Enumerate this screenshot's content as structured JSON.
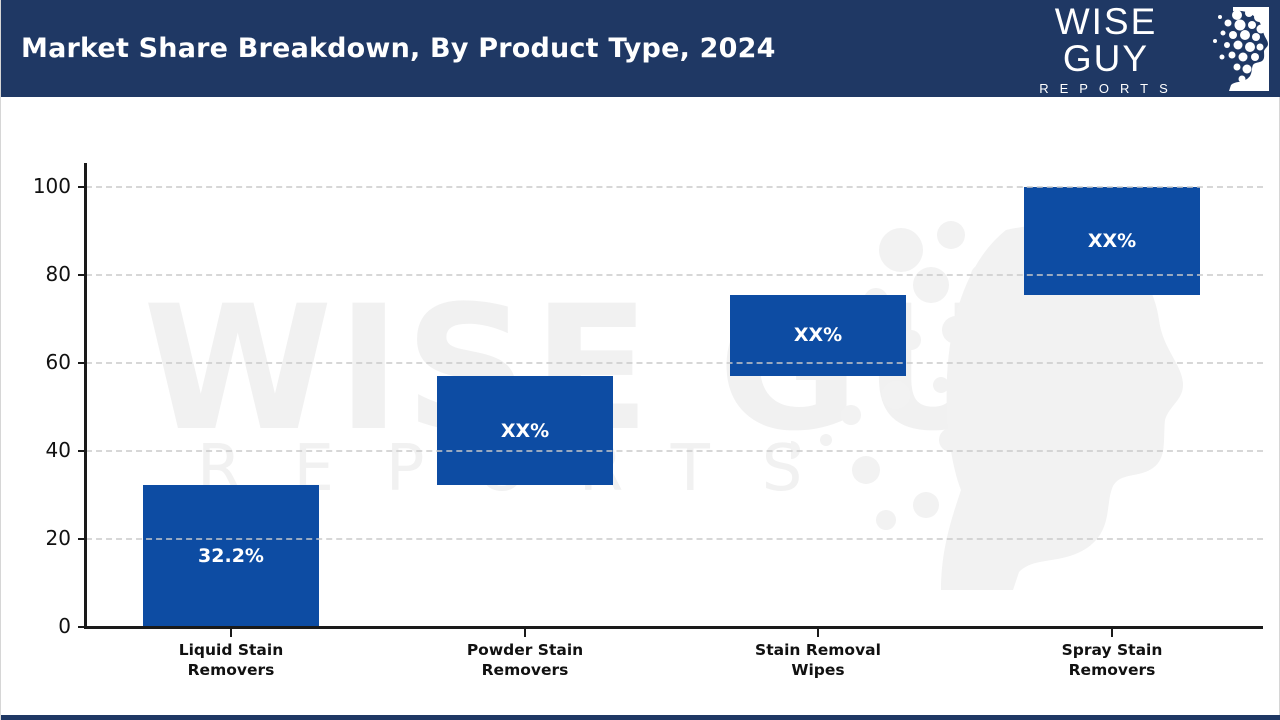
{
  "header": {
    "title": "Market Share Breakdown, By Product Type, 2024",
    "logo": {
      "line1": "WISE GUY",
      "line2": "REPORTS"
    }
  },
  "watermark": {
    "line1": "WISE GUY",
    "line2": "REPORTS"
  },
  "chart_data": {
    "type": "bar",
    "subtype": "waterfall",
    "title": "Market Share Breakdown, By Product Type, 2024",
    "categories": [
      "Liquid Stain\nRemovers",
      "Powder Stain\nRemovers",
      "Stain Removal\nWipes",
      "Spray Stain\nRemovers"
    ],
    "bars": [
      {
        "label": "32.2%",
        "start": 0,
        "end": 32.2
      },
      {
        "label": "XX%",
        "start": 32.2,
        "end": 57
      },
      {
        "label": "XX%",
        "start": 57,
        "end": 75.5
      },
      {
        "label": "XX%",
        "start": 75.5,
        "end": 100
      }
    ],
    "ylabel": "",
    "xlabel": "",
    "ylim": [
      0,
      100
    ],
    "yticks": [
      0,
      20,
      40,
      60,
      80,
      100
    ],
    "grid": "horizontal-dashed",
    "legend": "none"
  },
  "colors": {
    "header_bg": "#1f3864",
    "bar_fill": "#0d4ca3",
    "bar_label": "#ffffff",
    "grid_line": "#cacaca",
    "axis_line": "#1a1a1a",
    "tick_label": "#111111",
    "category_label": "#111111",
    "watermark": "#f1f1f1",
    "title_text": "#ffffff"
  }
}
